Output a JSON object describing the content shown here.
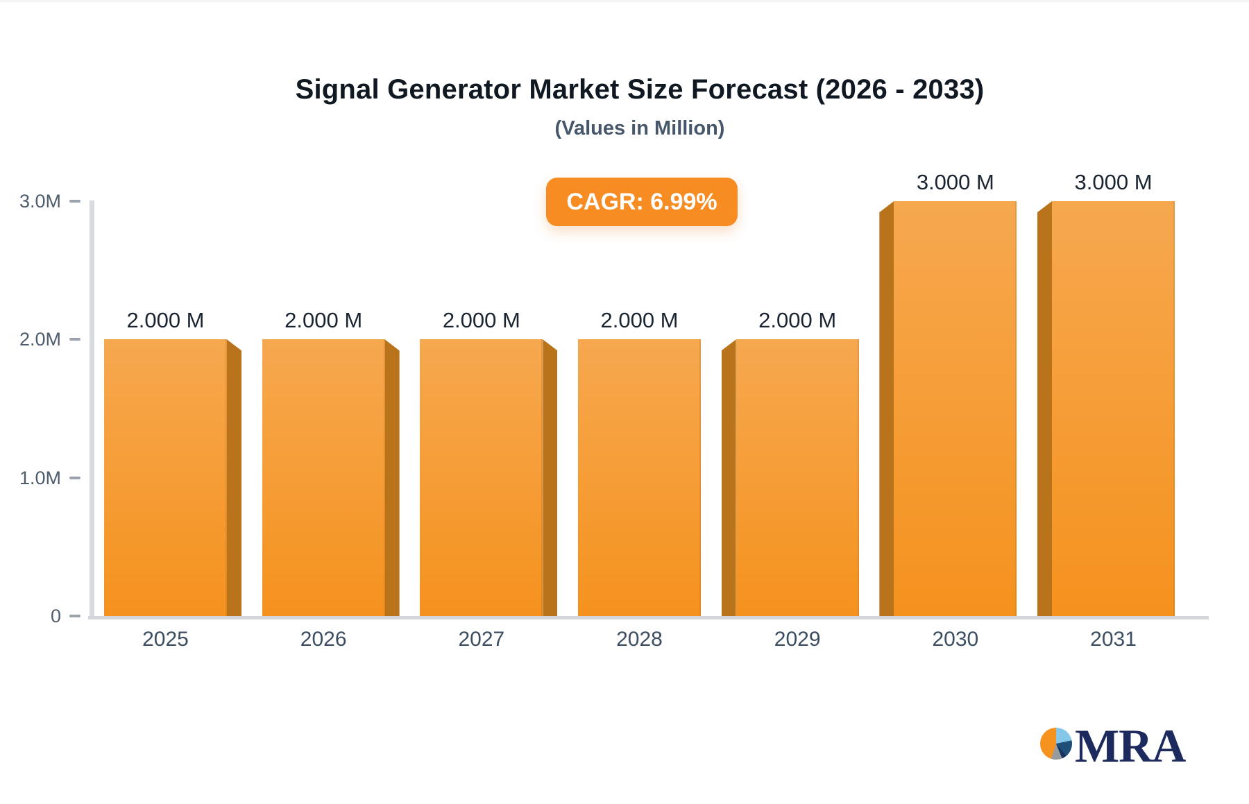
{
  "chart_data": {
    "type": "bar",
    "title": "Signal Generator Market Size Forecast (2026 - 2033)",
    "subtitle": "(Values in Million)",
    "badge_label": "CAGR: 6.99%",
    "categories": [
      "2025",
      "2026",
      "2027",
      "2028",
      "2029",
      "2030",
      "2031"
    ],
    "values": [
      2.0,
      2.0,
      2.0,
      2.0,
      2.0,
      3.0,
      3.0
    ],
    "bar_labels": [
      "2.000 M",
      "2.000 M",
      "2.000 M",
      "2.000 M",
      "2.000 M",
      "3.000 M",
      "3.000 M"
    ],
    "unit": "Million",
    "ylim": [
      0,
      3
    ],
    "yticks": [
      {
        "value": 0,
        "label": "0"
      },
      {
        "value": 1,
        "label": "1.0M"
      },
      {
        "value": 2,
        "label": "2.0M"
      },
      {
        "value": 3,
        "label": "3.0M"
      }
    ],
    "grid": "off",
    "legend": "none",
    "colors": {
      "bar_top": "#F6A84F",
      "bar_bottom": "#F5921E",
      "bar_side": "#B9731A",
      "badge_bg": "#F78C23",
      "badge_text": "#FFFFFF",
      "axis_line": "#D8DBDE",
      "tick_text": "#4E5D6D",
      "category_text": "#3C4D61",
      "value_label_text": "#1B2531",
      "title_text": "#101822",
      "subtitle_text": "#46566B"
    }
  },
  "logo": {
    "text": "MRA",
    "text_color": "#1C2A5E",
    "pie_slices": [
      {
        "name": "light-blue",
        "color": "#85C7E8",
        "from": 8,
        "to": 78
      },
      {
        "name": "navy",
        "color": "#1F4E79",
        "from": 78,
        "to": 140
      },
      {
        "name": "dark-navy",
        "color": "#17335F",
        "from": 140,
        "to": 158
      },
      {
        "name": "gray",
        "color": "#989CA1",
        "from": 158,
        "to": 198
      },
      {
        "name": "orange",
        "color": "#F6921E",
        "from": 198,
        "to": 368
      }
    ]
  }
}
